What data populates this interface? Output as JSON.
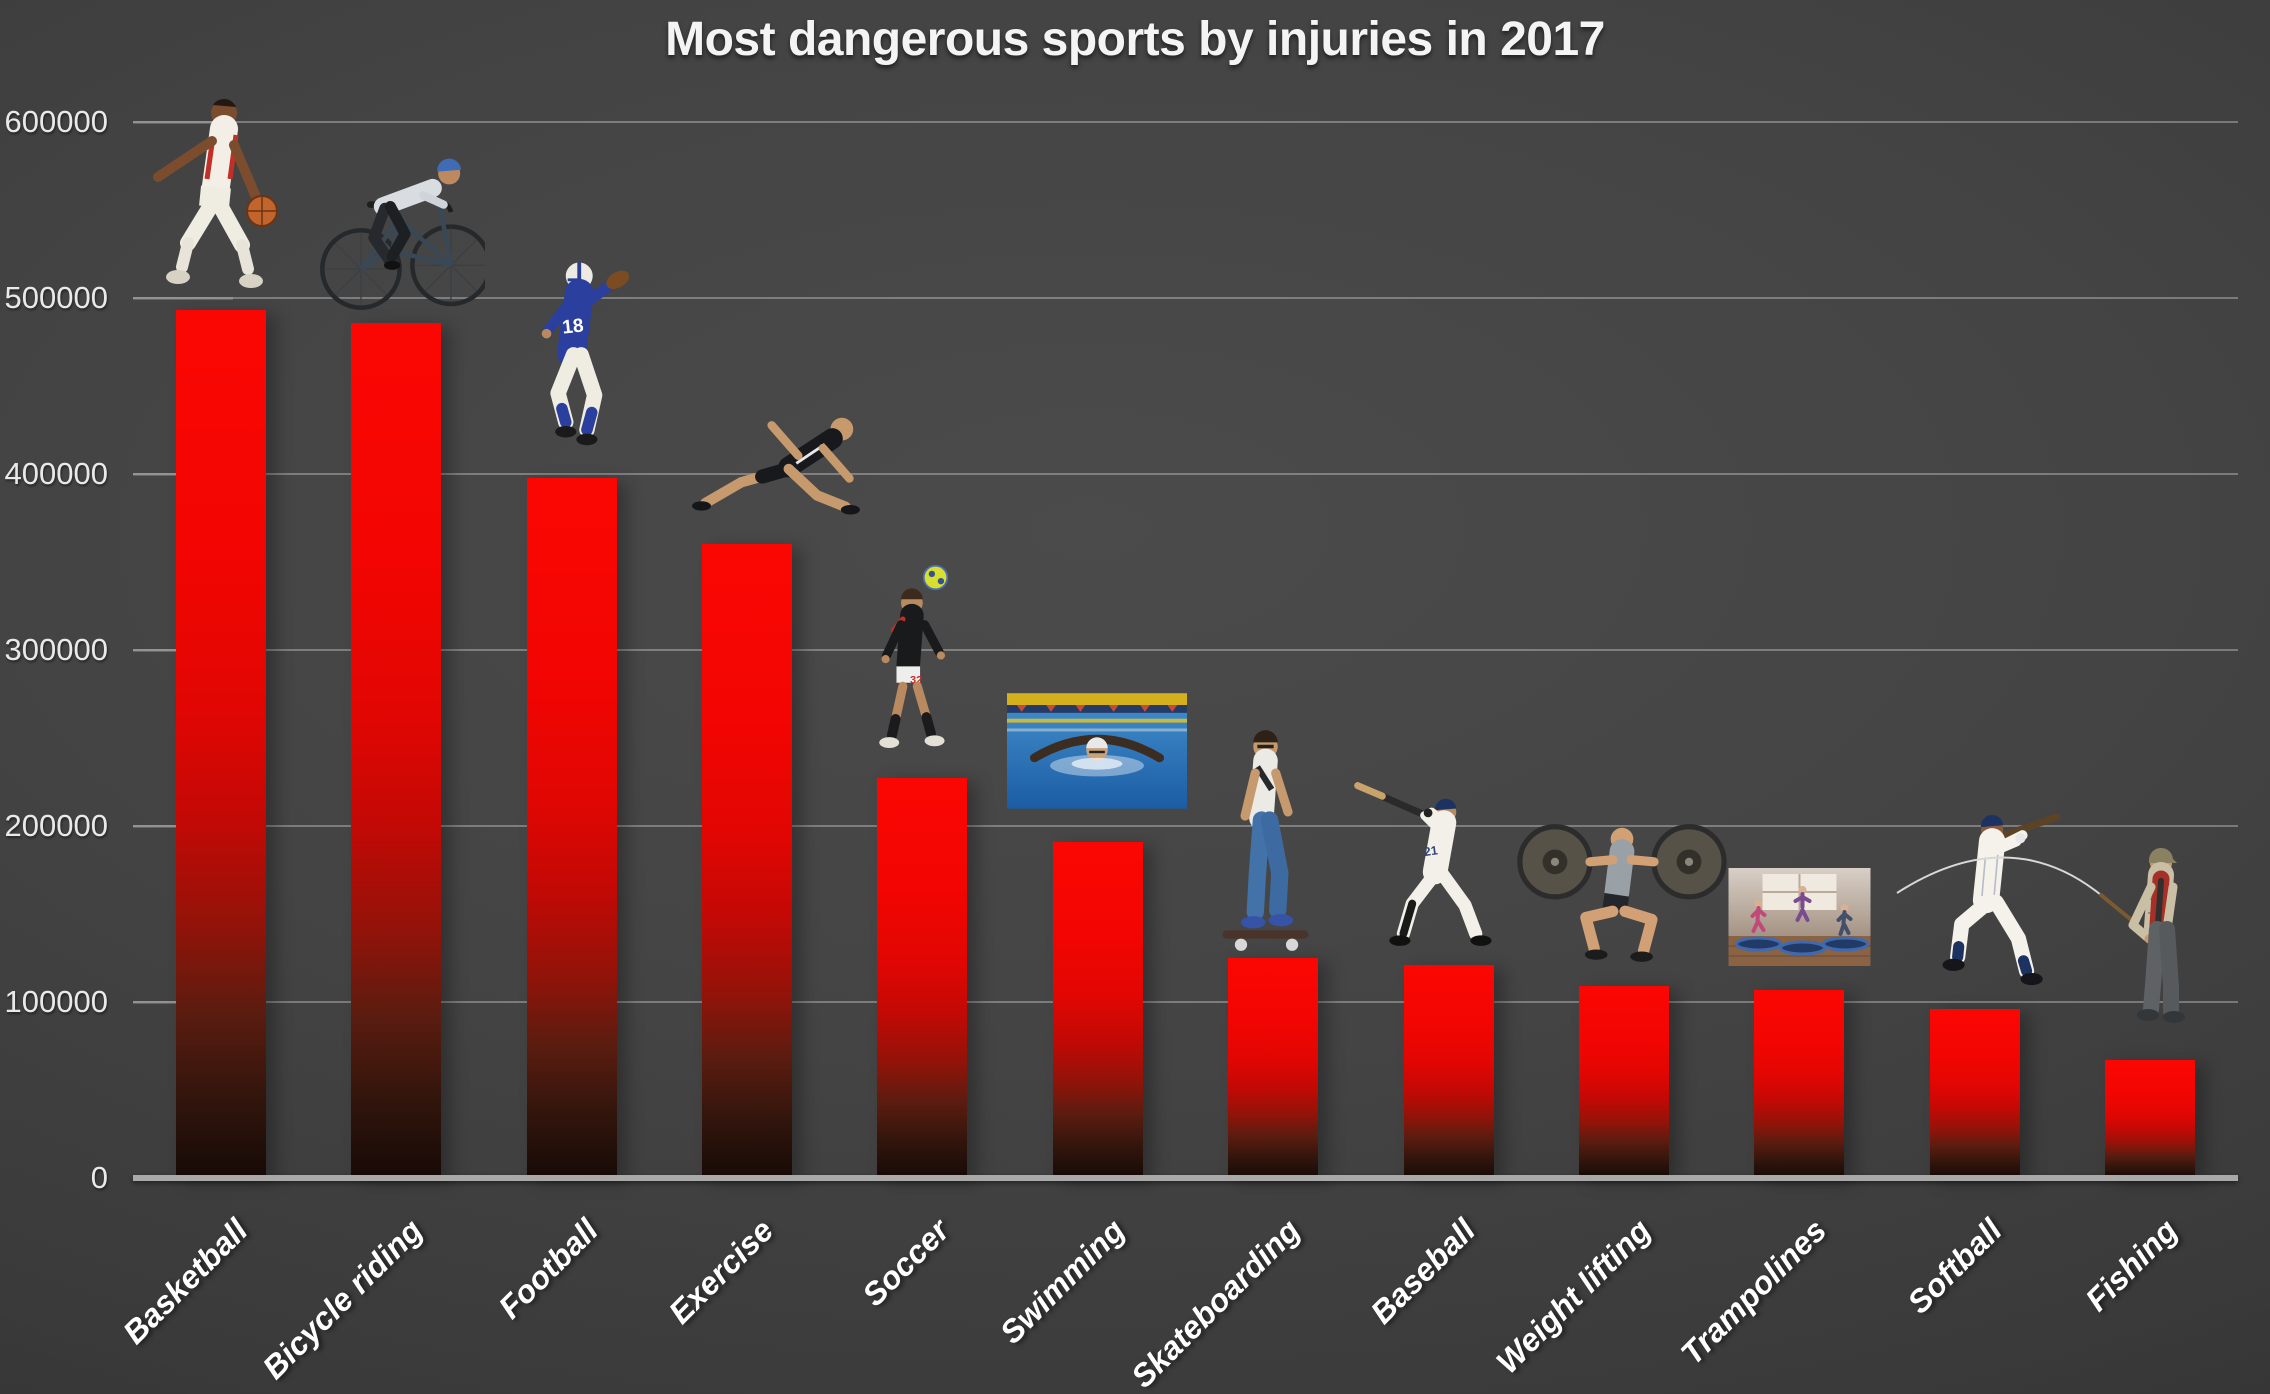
{
  "title": "Most dangerous sports by injuries in 2017",
  "y_axis": {
    "tick_labels": [
      "600000",
      "500000",
      "400000",
      "300000",
      "200000",
      "100000",
      "0"
    ]
  },
  "chart_data": {
    "type": "bar",
    "title": "Most dangerous sports by injuries in 2017",
    "categories": [
      "Basketball",
      "Bicycle riding",
      "Football",
      "Exercise",
      "Soccer",
      "Swimming",
      "Skateboarding",
      "Baseball",
      "Weight lifting",
      "Trampolines",
      "Softball",
      "Fishing"
    ],
    "values": [
      493000,
      486000,
      398000,
      360000,
      227000,
      191000,
      125000,
      121000,
      109000,
      107000,
      96000,
      67000
    ],
    "xlabel": "",
    "ylabel": "",
    "ylim": [
      0,
      600000
    ],
    "y_ticks": [
      600000,
      500000,
      400000,
      300000,
      200000,
      100000,
      0
    ],
    "grid": true,
    "legend": false,
    "bar_color_top": "#fb0703",
    "bar_color_bottom": "#170a07",
    "background_style": "dark-gray-vignette",
    "images": [
      "basketball-player-image",
      "cyclist-image",
      "football-player-image",
      "runner-image",
      "soccer-player-image",
      "swimming-photo",
      "skateboarder-image",
      "baseball-batter-image",
      "weight-lifter-image",
      "trampoline-gym-photo",
      "softball-batter-image",
      "fisherman-image"
    ]
  },
  "colors": {
    "grid_line": "#9b9b9b",
    "axis_line": "#a9a9a9",
    "tick_label_text": "#e9e9e9",
    "category_label_text": "#ffffff",
    "title_text": "#f4f4f4"
  }
}
